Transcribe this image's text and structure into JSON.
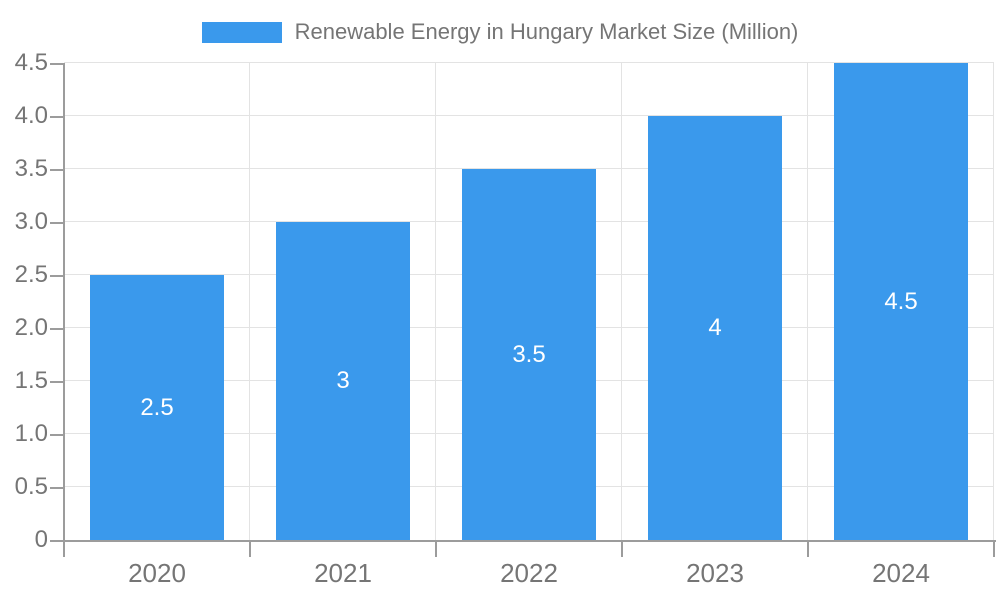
{
  "chart_data": {
    "type": "bar",
    "title": "Renewable Energy in Hungary Market Size (Million)",
    "categories": [
      "2020",
      "2021",
      "2022",
      "2023",
      "2024"
    ],
    "values": [
      2.5,
      3,
      3.5,
      4,
      4.5
    ],
    "value_labels": [
      "2.5",
      "3",
      "3.5",
      "4",
      "4.5"
    ],
    "xlabel": "",
    "ylabel": "",
    "ylim": [
      0,
      4.5
    ],
    "ytick_step": 0.5,
    "yticks": [
      "0",
      "0.5",
      "1.0",
      "1.5",
      "2.0",
      "2.5",
      "3.0",
      "3.5",
      "4.0",
      "4.5"
    ],
    "grid": true,
    "legend_position": "top-center",
    "colors": {
      "bar": "#3A99EC",
      "bar_label": "#FFFFFF",
      "axis": "#9C9C9C",
      "grid": "#E3E3E3",
      "text": "#757575"
    }
  }
}
